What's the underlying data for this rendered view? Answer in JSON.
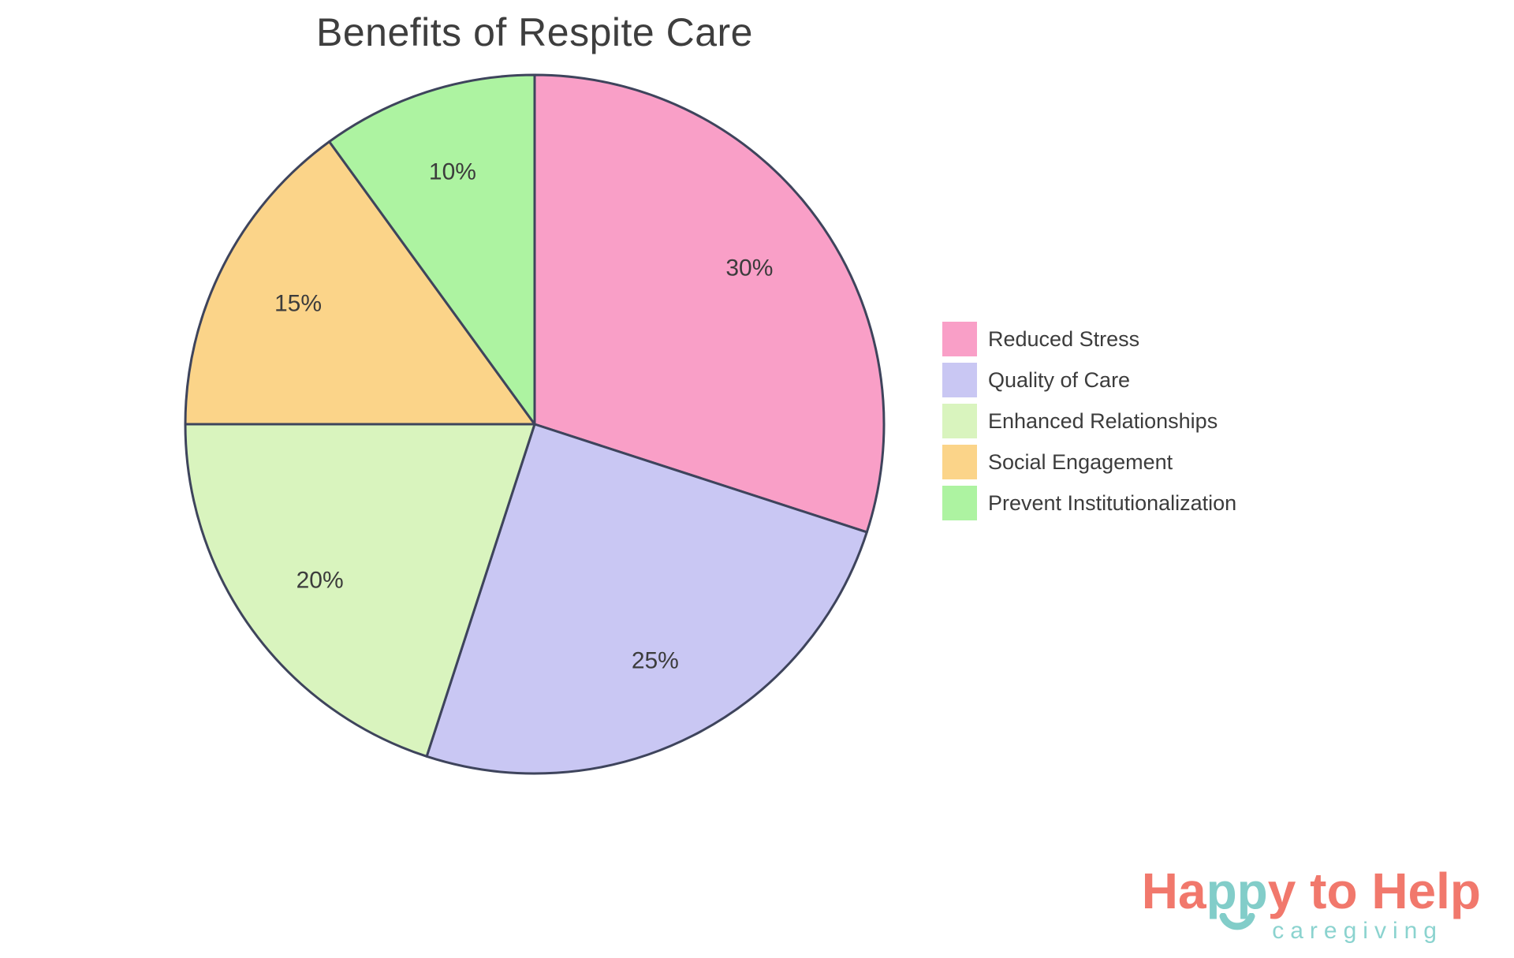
{
  "chart": {
    "title": "Benefits of Respite Care"
  },
  "chart_data": {
    "type": "pie",
    "title": "Benefits of Respite Care",
    "direction": "clockwise",
    "start_angle": "top",
    "legend_position": "right",
    "stroke_color": "#3E445C",
    "label_color": "#3C3C3C",
    "slices": [
      {
        "label": "Reduced Stress",
        "value": 30,
        "pct_label": "30%",
        "color": "#F99FC7"
      },
      {
        "label": "Quality of Care",
        "value": 25,
        "pct_label": "25%",
        "color": "#C9C7F3"
      },
      {
        "label": "Enhanced Relationships",
        "value": 20,
        "pct_label": "20%",
        "color": "#D9F4BE"
      },
      {
        "label": "Social Engagement",
        "value": 15,
        "pct_label": "15%",
        "color": "#FBD489"
      },
      {
        "label": "Prevent Institutionalization",
        "value": 10,
        "pct_label": "10%",
        "color": "#ADF3A1"
      }
    ]
  },
  "logo": {
    "part1": "Ha",
    "part2": "pp",
    "part3": "y to Help",
    "subtitle": "caregiving",
    "coral": "#F1786C",
    "teal": "#82CDC9",
    "teal_light": "#8BD3CF"
  }
}
